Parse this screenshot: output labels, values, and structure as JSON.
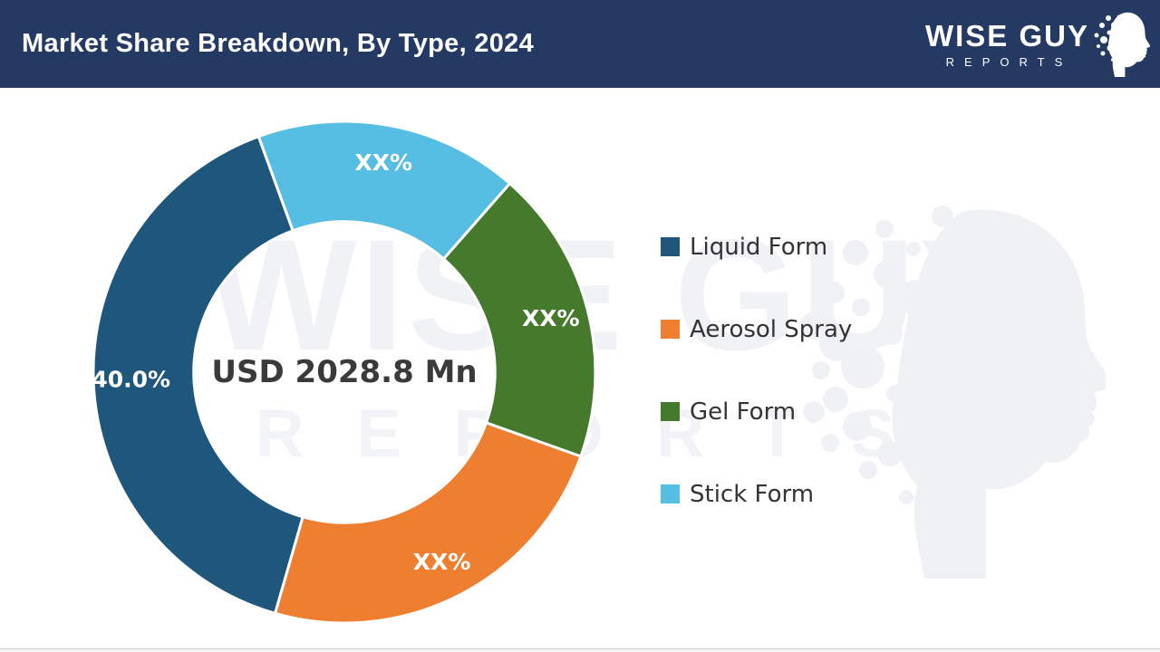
{
  "header": {
    "title": "Market Share Breakdown, By Type, 2024",
    "bg_color": "#243A63",
    "logo": {
      "name": "WISE GUY",
      "tagline": "REPORTS"
    }
  },
  "chart_data": {
    "type": "pie",
    "subtype": "donut",
    "title": "Market Share Breakdown, By Type, 2024",
    "center_label": "USD 2028.8 Mn",
    "start_angle_deg": 110,
    "direction": "counterclockwise",
    "inner_radius_ratio": 0.6,
    "label_radius_ratio": 0.85,
    "legend_position": "right",
    "segments": [
      {
        "label": "Liquid Form",
        "display_pct": "40.0%",
        "value": 40,
        "color": "#1F567C"
      },
      {
        "label": "Aerosol Spray",
        "display_pct": "XX%",
        "value": 24,
        "color": "#EE7E30"
      },
      {
        "label": "Gel Form",
        "display_pct": "XX%",
        "value": 19,
        "color": "#45792B"
      },
      {
        "label": "Stick Form",
        "display_pct": "XX%",
        "value": 17,
        "color": "#56BDE3"
      }
    ],
    "label_text_color": "#ffffff",
    "center_label_color": "#3A3A3A"
  },
  "watermark": {
    "name": "WISE GUY",
    "tagline": "REPORTS"
  }
}
